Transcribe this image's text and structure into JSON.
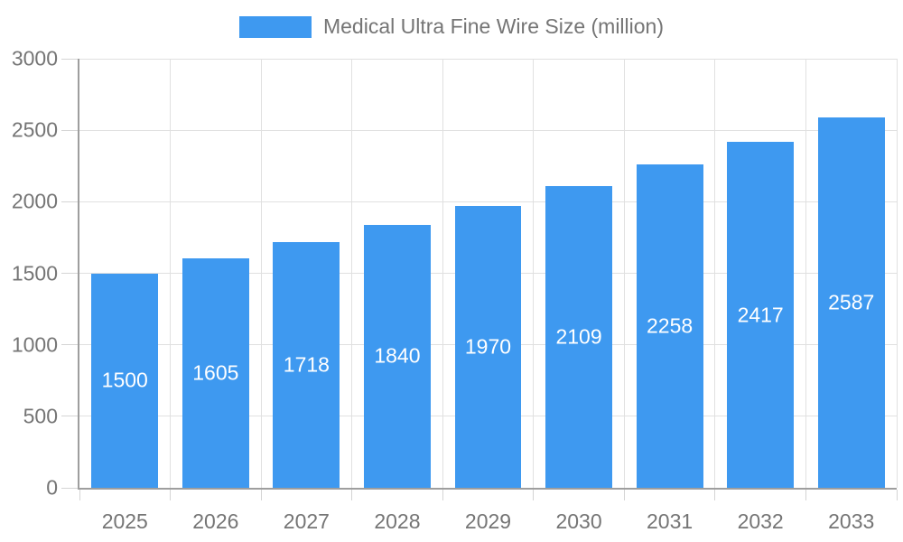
{
  "legend": {
    "label": "Medical Ultra Fine Wire Size (million)"
  },
  "chart_data": {
    "type": "bar",
    "title": "Medical Ultra Fine Wire Size (million)",
    "categories": [
      "2025",
      "2026",
      "2027",
      "2028",
      "2029",
      "2030",
      "2031",
      "2032",
      "2033"
    ],
    "values": [
      1500,
      1605,
      1718,
      1840,
      1970,
      2109,
      2258,
      2417,
      2587
    ],
    "xlabel": "",
    "ylabel": "",
    "ylim": [
      0,
      3000
    ],
    "yticks": [
      0,
      500,
      1000,
      1500,
      2000,
      2500,
      3000
    ],
    "grid": true,
    "legend_position": "top-center",
    "value_labels": "inside-center-white",
    "bar_color": "#3E99F0",
    "value_label_color": "#ffffff",
    "axis_text_color": "#757575",
    "grid_color": "#e0e0e0",
    "axis_line_color": "#9e9e9e",
    "tick_color": "#d4d4d4",
    "background_color": "#ffffff"
  }
}
